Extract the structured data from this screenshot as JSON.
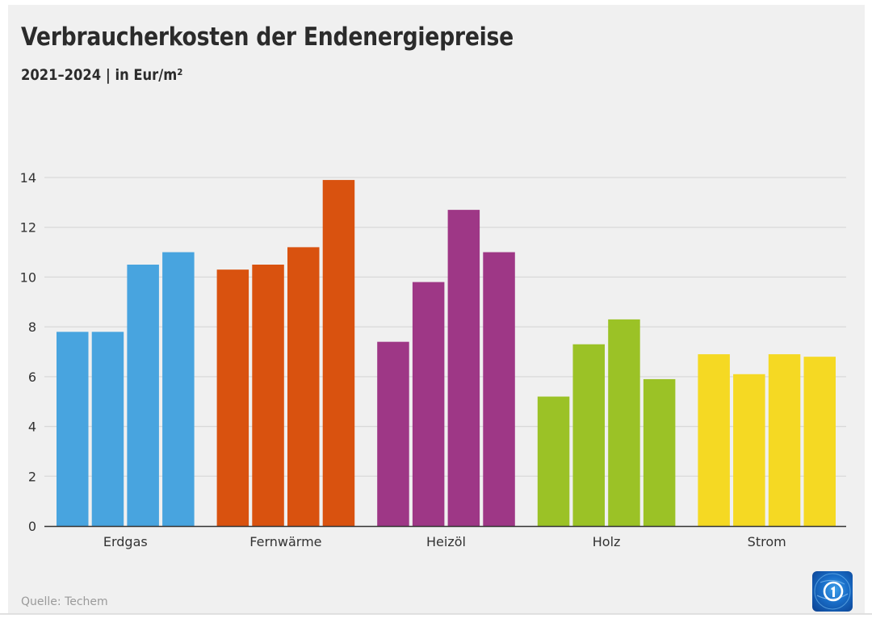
{
  "header": {
    "title": "Verbraucherkosten der Endenergiepreise",
    "subtitle": "2021–2024 | in Eur/m²"
  },
  "footer": {
    "source": "Quelle: Techem",
    "logo_icon": "tagesschau-logo-icon"
  },
  "chart_data": {
    "type": "bar",
    "title": "Verbraucherkosten der Endenergiepreise",
    "subtitle": "2021–2024 | in Eur/m²",
    "xlabel": "",
    "ylabel": "",
    "ylim": [
      0,
      14
    ],
    "yticks": [
      0,
      2,
      4,
      6,
      8,
      10,
      12,
      14
    ],
    "grid": true,
    "legend": "none",
    "years": [
      "2021",
      "2022",
      "2023",
      "2024"
    ],
    "categories": [
      {
        "name": "Erdgas",
        "color": "#48a4df",
        "values": [
          7.8,
          7.8,
          10.5,
          11.0
        ]
      },
      {
        "name": "Fernwärme",
        "color": "#d9520f",
        "values": [
          10.3,
          10.5,
          11.2,
          13.9
        ]
      },
      {
        "name": "Heizöl",
        "color": "#9e3786",
        "values": [
          7.4,
          9.8,
          12.7,
          11.0
        ]
      },
      {
        "name": "Holz",
        "color": "#9bc226",
        "values": [
          5.2,
          7.3,
          8.3,
          5.9
        ]
      },
      {
        "name": "Strom",
        "color": "#f5d923",
        "values": [
          6.9,
          6.1,
          6.9,
          6.8
        ]
      }
    ],
    "source": "Quelle: Techem"
  }
}
